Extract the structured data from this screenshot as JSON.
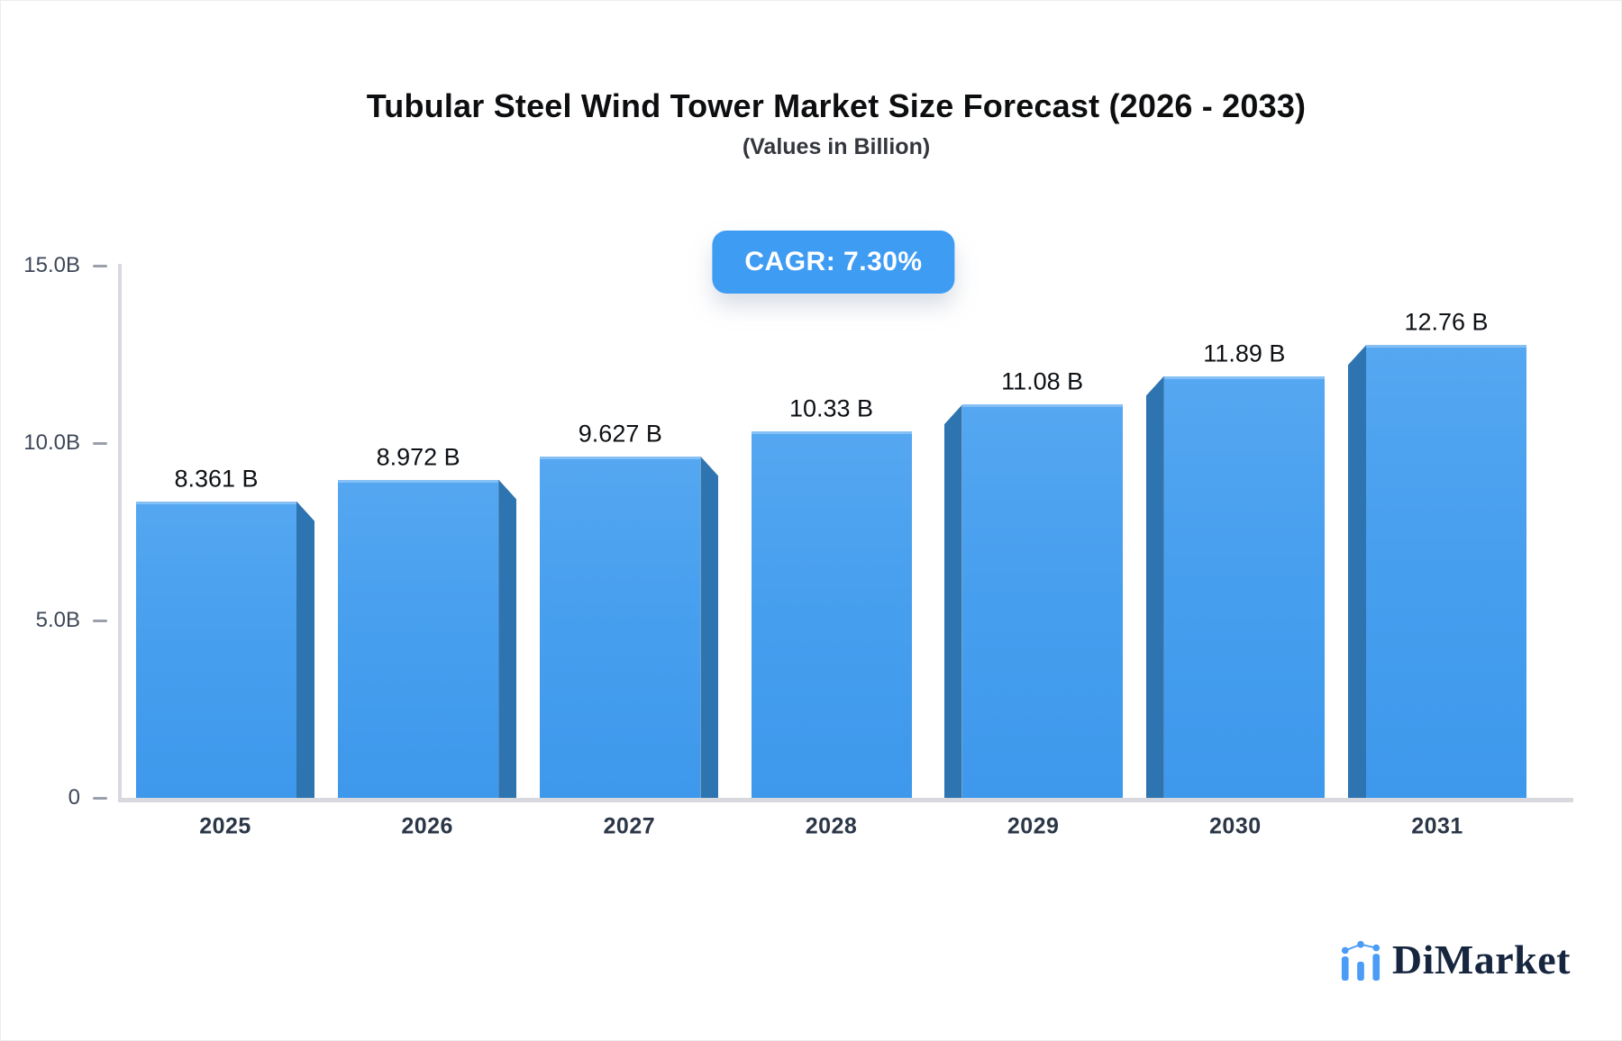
{
  "title": "Tubular Steel Wind Tower Market Size Forecast (2026 - 2033)",
  "subtitle": "(Values in Billion)",
  "badge": {
    "label": "CAGR: 7.30%"
  },
  "chart_data": {
    "type": "bar",
    "title": "Tubular Steel Wind Tower Market Size Forecast (2026 - 2033)",
    "subtitle": "(Values in Billion)",
    "annotation": "CAGR: 7.30%",
    "categories": [
      "2025",
      "2026",
      "2027",
      "2028",
      "2029",
      "2030",
      "2031"
    ],
    "values": [
      8.361,
      8.972,
      9.627,
      10.33,
      11.08,
      11.89,
      12.76
    ],
    "value_labels": [
      "8.361 B",
      "8.972 B",
      "9.627 B",
      "10.33 B",
      "11.08 B",
      "11.89 B",
      "12.76 B"
    ],
    "unit": "Billion",
    "xlabel": "",
    "ylabel": "",
    "ylim": [
      0,
      15
    ],
    "y_ticks": [
      {
        "label": "15.0B",
        "value": 15
      },
      {
        "label": "10.0B",
        "value": 10
      },
      {
        "label": "5.0B",
        "value": 5
      },
      {
        "label": "0",
        "value": 0
      }
    ],
    "grid": false,
    "legend": null,
    "style": "3d-perspective-bars",
    "colors": {
      "bar_face_top": "#55a7f1",
      "bar_face_bottom": "#3e98ec",
      "bar_side": "#2e74b0",
      "axis_line": "#d7d9de",
      "tick": "#9aa0ab",
      "tick_label": "#3e4757",
      "value_label": "#0d1014",
      "category_label": "#2b3647",
      "badge_bg": "#3f9cf3",
      "badge_text": "#ffffff"
    }
  },
  "logo": {
    "text": "DiMarket",
    "icon": "bar-chart-trend-icon",
    "icon_color": "#4a9cf6",
    "text_color": "#17263f"
  }
}
